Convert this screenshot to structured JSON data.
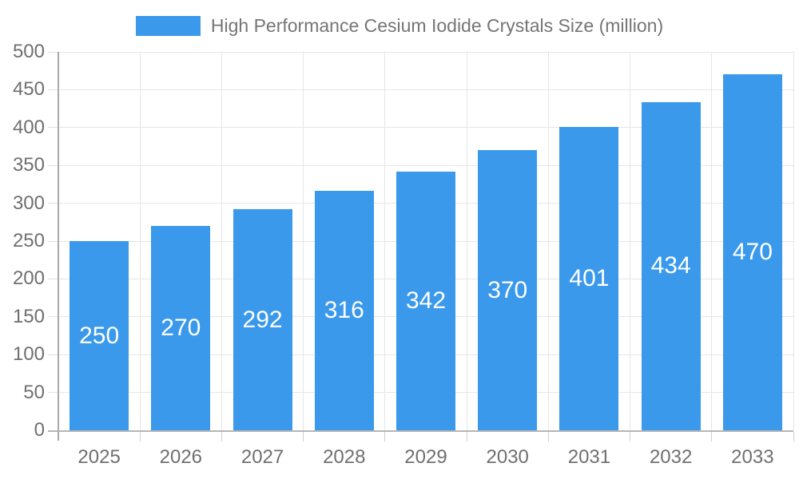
{
  "chart_data": {
    "type": "bar",
    "title": "High Performance Cesium Iodide Crystals Size (million)",
    "categories": [
      "2025",
      "2026",
      "2027",
      "2028",
      "2029",
      "2030",
      "2031",
      "2032",
      "2033"
    ],
    "series": [
      {
        "name": "High Performance Cesium Iodide Crystals Size (million)",
        "values": [
          250,
          270,
          292,
          316,
          342,
          370,
          401,
          434,
          470
        ]
      }
    ],
    "xlabel": "",
    "ylabel": "",
    "ylim": [
      0,
      500
    ],
    "ytick_step": 50,
    "ytick_labels": [
      "0",
      "50",
      "100",
      "150",
      "200",
      "250",
      "300",
      "350",
      "400",
      "450",
      "500"
    ],
    "grid": true,
    "legend_position": "top-center",
    "value_label_position": "inside-center",
    "colors": {
      "bar": "#3B99EC",
      "value_label_text": "#FFFFFF",
      "axis_text": "#6F6F6F",
      "legend_text": "#757575",
      "gridline": "#E6E6E6",
      "y_axis_line": "#A9A9A9",
      "x_baseline": "#B5B5B5",
      "y_tick": "#E0E0E0",
      "x_tick": "#CFCFCF",
      "background": "#FFFFFF"
    }
  }
}
